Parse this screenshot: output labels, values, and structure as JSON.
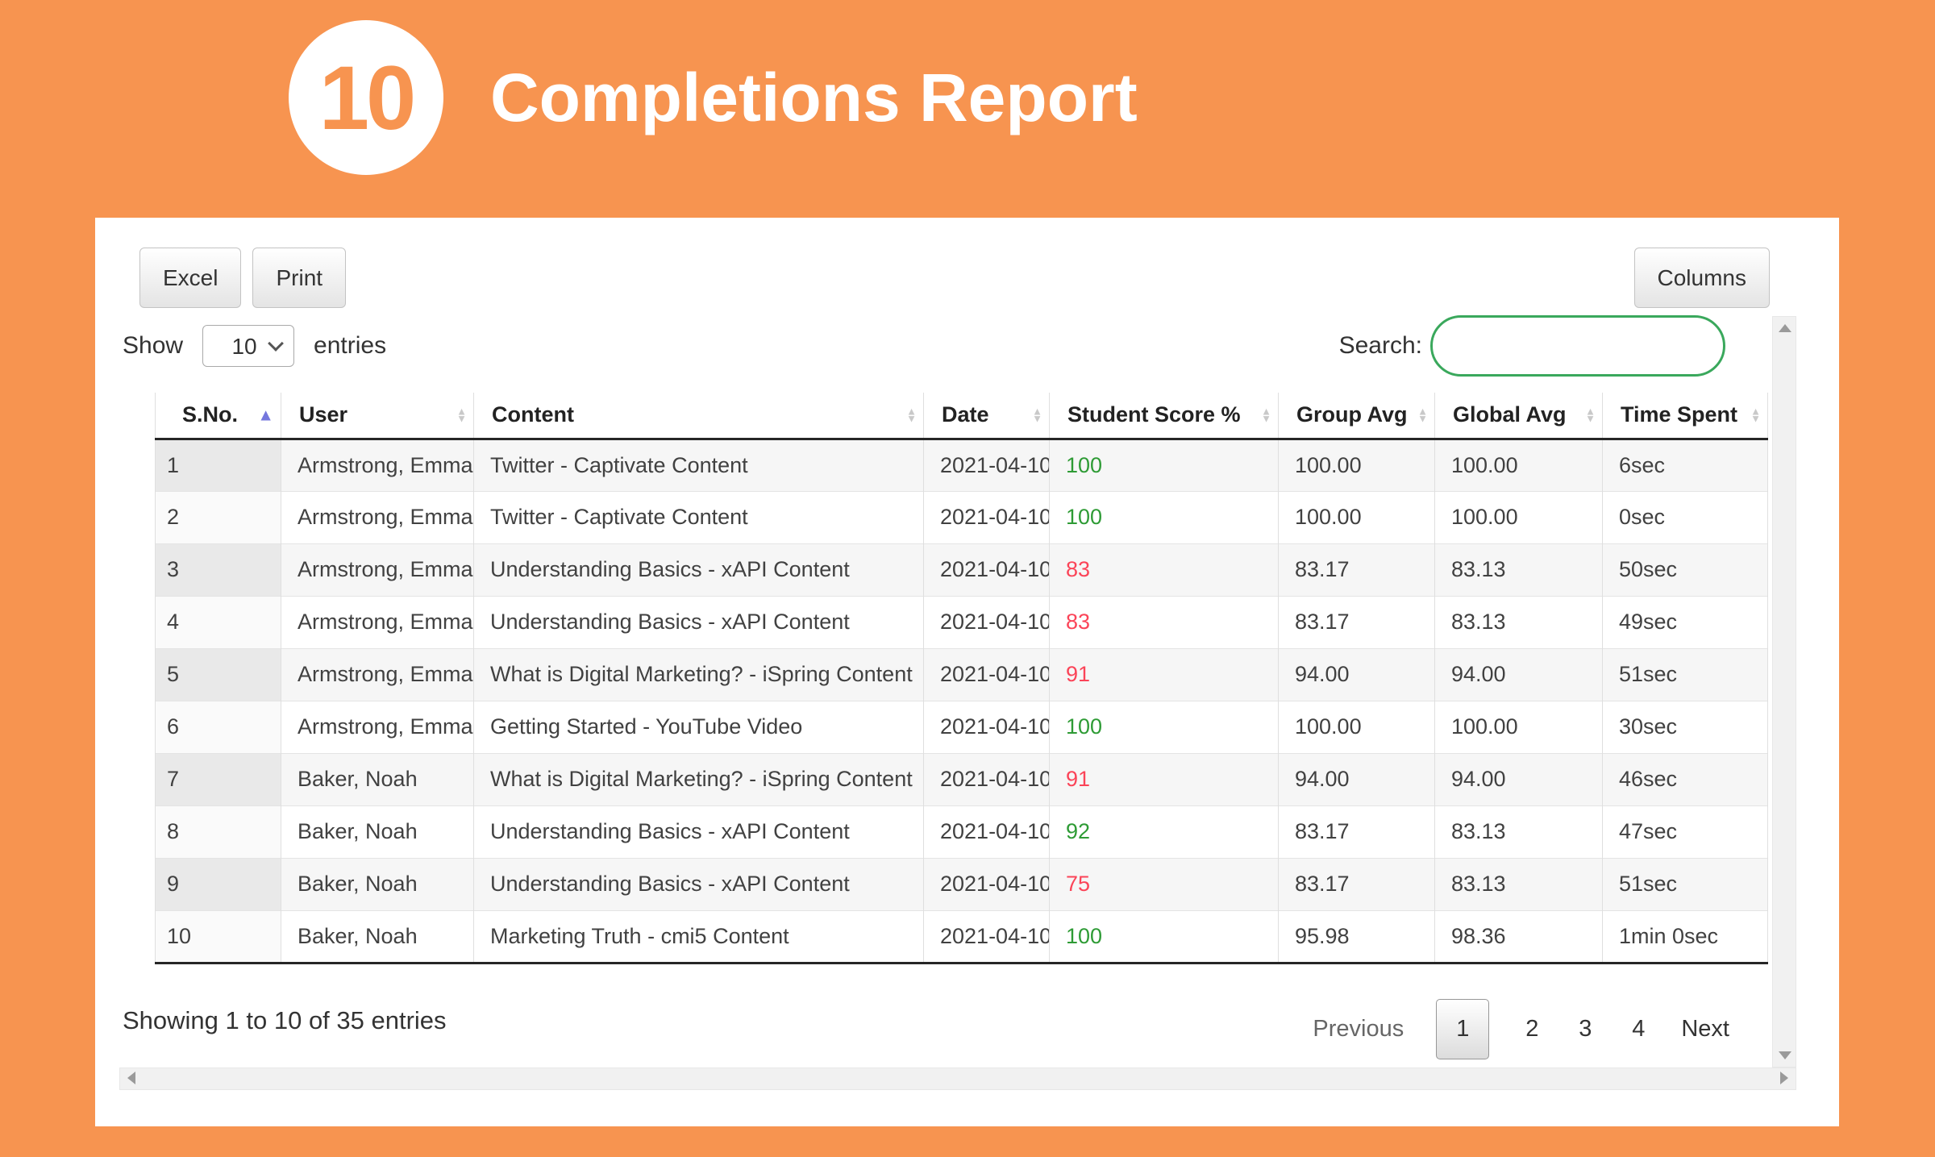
{
  "header": {
    "badge_number": "10",
    "title": "Completions Report"
  },
  "toolbar": {
    "excel": "Excel",
    "print": "Print",
    "columns": "Columns"
  },
  "length_control": {
    "show": "Show",
    "selected": "10",
    "entries": "entries"
  },
  "search": {
    "label": "Search:",
    "value": "",
    "placeholder": ""
  },
  "table": {
    "columns": [
      {
        "key": "sno",
        "label": "S.No.",
        "sort": "asc"
      },
      {
        "key": "user",
        "label": "User",
        "sort": "none"
      },
      {
        "key": "content",
        "label": "Content",
        "sort": "none"
      },
      {
        "key": "date",
        "label": "Date",
        "sort": "none"
      },
      {
        "key": "score",
        "label": "Student Score %",
        "sort": "none"
      },
      {
        "key": "group_avg",
        "label": "Group Avg",
        "sort": "none"
      },
      {
        "key": "global_avg",
        "label": "Global Avg",
        "sort": "none"
      },
      {
        "key": "time_spent",
        "label": "Time Spent",
        "sort": "none"
      }
    ],
    "rows": [
      {
        "sno": "1",
        "user": "Armstrong, Emma",
        "content": "Twitter - Captivate Content",
        "date": "2021-04-10",
        "score": "100",
        "score_color": "green",
        "group_avg": "100.00",
        "global_avg": "100.00",
        "time_spent": "6sec"
      },
      {
        "sno": "2",
        "user": "Armstrong, Emma",
        "content": "Twitter - Captivate Content",
        "date": "2021-04-10",
        "score": "100",
        "score_color": "green",
        "group_avg": "100.00",
        "global_avg": "100.00",
        "time_spent": "0sec"
      },
      {
        "sno": "3",
        "user": "Armstrong, Emma",
        "content": "Understanding Basics - xAPI Content",
        "date": "2021-04-10",
        "score": "83",
        "score_color": "red",
        "group_avg": "83.17",
        "global_avg": "83.13",
        "time_spent": "50sec"
      },
      {
        "sno": "4",
        "user": "Armstrong, Emma",
        "content": "Understanding Basics - xAPI Content",
        "date": "2021-04-10",
        "score": "83",
        "score_color": "red",
        "group_avg": "83.17",
        "global_avg": "83.13",
        "time_spent": "49sec"
      },
      {
        "sno": "5",
        "user": "Armstrong, Emma",
        "content": "What is Digital Marketing? - iSpring Content",
        "date": "2021-04-10",
        "score": "91",
        "score_color": "red",
        "group_avg": "94.00",
        "global_avg": "94.00",
        "time_spent": "51sec"
      },
      {
        "sno": "6",
        "user": "Armstrong, Emma",
        "content": "Getting Started - YouTube Video",
        "date": "2021-04-10",
        "score": "100",
        "score_color": "green",
        "group_avg": "100.00",
        "global_avg": "100.00",
        "time_spent": "30sec"
      },
      {
        "sno": "7",
        "user": "Baker, Noah",
        "content": "What is Digital Marketing? - iSpring Content",
        "date": "2021-04-10",
        "score": "91",
        "score_color": "red",
        "group_avg": "94.00",
        "global_avg": "94.00",
        "time_spent": "46sec"
      },
      {
        "sno": "8",
        "user": "Baker, Noah",
        "content": "Understanding Basics - xAPI Content",
        "date": "2021-04-10",
        "score": "92",
        "score_color": "green",
        "group_avg": "83.17",
        "global_avg": "83.13",
        "time_spent": "47sec"
      },
      {
        "sno": "9",
        "user": "Baker, Noah",
        "content": "Understanding Basics - xAPI Content",
        "date": "2021-04-10",
        "score": "75",
        "score_color": "red",
        "group_avg": "83.17",
        "global_avg": "83.13",
        "time_spent": "51sec"
      },
      {
        "sno": "10",
        "user": "Baker, Noah",
        "content": "Marketing Truth - cmi5 Content",
        "date": "2021-04-10",
        "score": "100",
        "score_color": "green",
        "group_avg": "95.98",
        "global_avg": "98.36",
        "time_spent": "1min 0sec"
      }
    ]
  },
  "footer": {
    "summary": "Showing 1 to 10 of 35 entries",
    "pagination": {
      "previous": "Previous",
      "pages": [
        "1",
        "2",
        "3",
        "4"
      ],
      "current_page": "1",
      "next": "Next"
    }
  },
  "colors": {
    "background_orange": "#f79450",
    "score_green": "#2e9b35",
    "score_red": "#fb4458",
    "search_border": "#3aa85c",
    "sort_active_arrow": "#7577dd"
  }
}
